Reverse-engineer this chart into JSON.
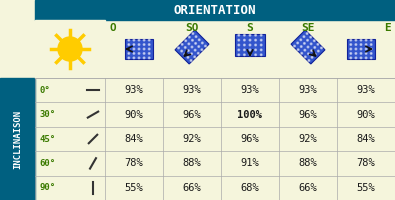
{
  "title": "ORIENTATION",
  "col_headers": [
    "O",
    "SO",
    "S",
    "SE",
    "E"
  ],
  "row_headers": [
    "0°",
    "30°",
    "45°",
    "60°",
    "90°"
  ],
  "values": [
    [
      "93%",
      "93%",
      "93%",
      "93%",
      "93%"
    ],
    [
      "90%",
      "96%",
      "100%",
      "96%",
      "90%"
    ],
    [
      "84%",
      "92%",
      "96%",
      "92%",
      "84%"
    ],
    [
      "78%",
      "88%",
      "91%",
      "88%",
      "78%"
    ],
    [
      "55%",
      "66%",
      "68%",
      "66%",
      "55%"
    ]
  ],
  "header_bg": "#006080",
  "header_text_color": "white",
  "col_header_color": "#3a7a00",
  "row_header_color": "#3a7a00",
  "cell_bg": "#f5f5dc",
  "left_panel_bg": "#f5f5dc",
  "inclinaison_bg": "#006080",
  "inclinaison_text": "INCLINAISON",
  "grid_color": "#aaaaaa",
  "value_text_color": "#1a1a1a",
  "sun_color": "#ffcc00",
  "bg_color": "#f5f5dc"
}
